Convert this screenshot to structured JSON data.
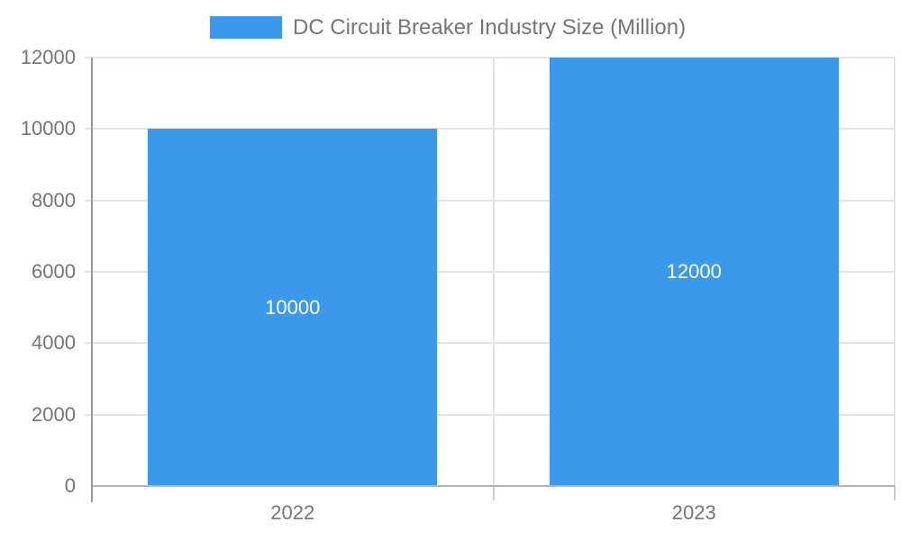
{
  "chart_data": {
    "type": "bar",
    "title": "DC Circuit Breaker Industry Size (Million)",
    "categories": [
      "2022",
      "2023"
    ],
    "values": [
      10000,
      12000
    ],
    "yticks": [
      0,
      2000,
      4000,
      6000,
      8000,
      10000,
      12000
    ],
    "ylim": [
      0,
      12000
    ],
    "grid": true,
    "legend_position": "top",
    "bar_label_position": "inside-center",
    "colors": {
      "bar": "#3B99EC",
      "bar_label": "#FFFFFF",
      "axis_text": "#757575",
      "title_text": "#757575",
      "gridline": "#E3E3E3",
      "x_axis_line": "#B3B3B3",
      "y_axis_line": "#999999",
      "tick": "#CCCCCC",
      "background": "#FFFFFF"
    }
  }
}
